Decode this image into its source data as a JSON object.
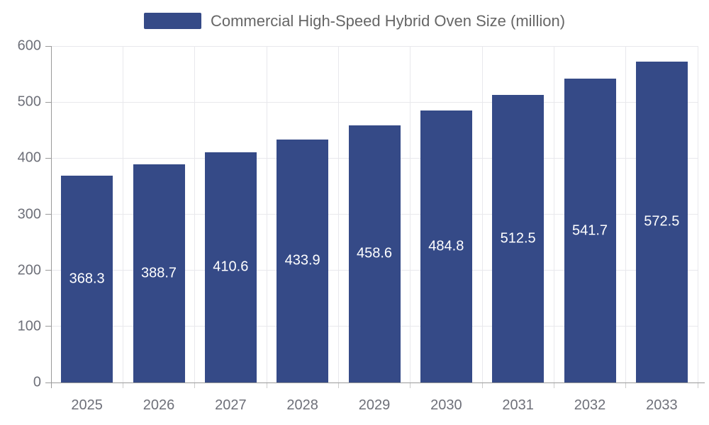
{
  "chart_data": {
    "type": "bar",
    "title": "Commercial High-Speed Hybrid Oven Size (million)",
    "categories": [
      "2025",
      "2026",
      "2027",
      "2028",
      "2029",
      "2030",
      "2031",
      "2032",
      "2033"
    ],
    "series": [
      {
        "name": "Commercial High-Speed Hybrid Oven Size (million)",
        "values": [
          368.3,
          388.7,
          410.6,
          433.9,
          458.6,
          484.8,
          512.5,
          541.7,
          572.5
        ]
      }
    ],
    "xlabel": "",
    "ylabel": "",
    "ylim": [
      0,
      600
    ],
    "yticks": [
      0,
      100,
      200,
      300,
      400,
      500,
      600
    ],
    "grid": true,
    "legend_position": "top-center",
    "value_label_position": "inside-center",
    "colors": {
      "bar": "#354a87",
      "value_label": "#ffffff",
      "axis_label": "#6e7079",
      "legend_label": "#666666",
      "gridline": "#e8e8ec",
      "axis_line": "#9a9a9a",
      "category_tick": "#cccccc",
      "background": "#ffffff"
    }
  }
}
